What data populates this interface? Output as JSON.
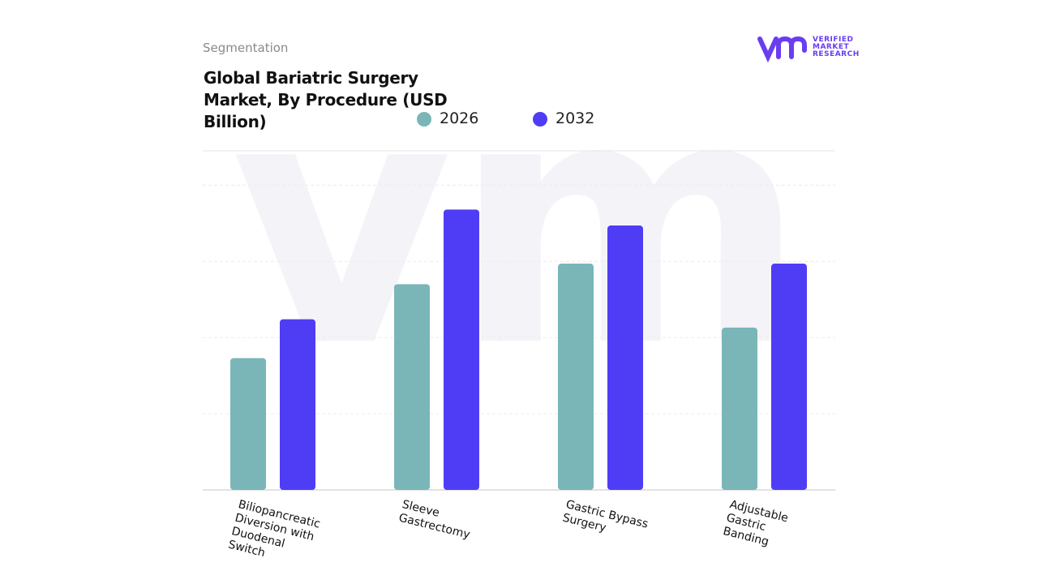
{
  "header": {
    "section": "Segmentation",
    "logo_text": "VERIFIED MARKET RESEARCH"
  },
  "chart_data": {
    "type": "bar",
    "title": "Global Bariatric Surgery Market, By Procedure (USD Billion)",
    "categories": [
      "Biliopancreatic Diversion with Duodenal Switch",
      "Sleeve Gastrectomy",
      "Gastric Bypass Surgery",
      "Adjustable Gastric Banding"
    ],
    "series": [
      {
        "name": "2026",
        "color": "#7ab6b7",
        "values": [
          1.73,
          2.7,
          2.97,
          2.13
        ]
      },
      {
        "name": "2032",
        "color": "#4f3df5",
        "values": [
          2.24,
          3.68,
          3.47,
          2.97
        ]
      }
    ],
    "ylim": [
      0,
      4.45
    ],
    "yticks": [
      0,
      1,
      2,
      3,
      4
    ],
    "grid": true
  }
}
